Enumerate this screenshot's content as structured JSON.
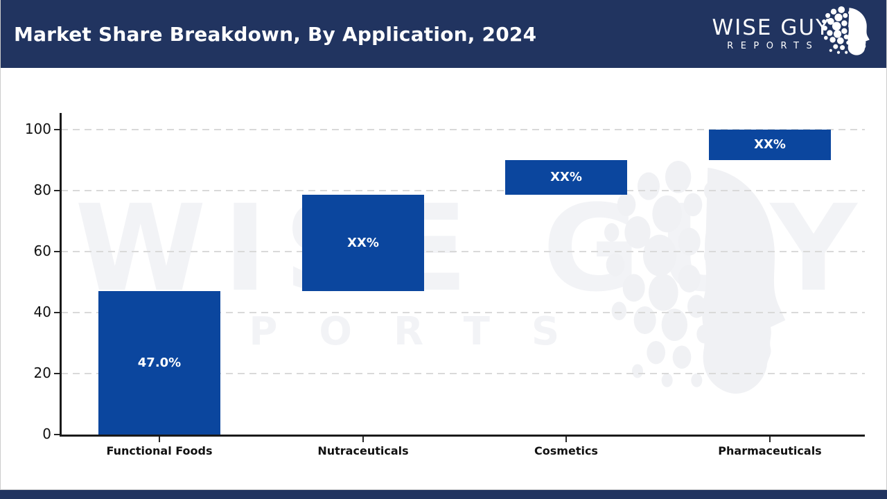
{
  "header": {
    "title": "Market Share Breakdown, By Application, 2024",
    "bg_color": "#213460",
    "brand": {
      "name": "WISE GUY",
      "sub": "REPORTS"
    }
  },
  "watermark": {
    "line1": "WISE GUY",
    "line2": "REPORTS"
  },
  "chart_data": {
    "type": "bar",
    "subtype": "waterfall",
    "title": "Market Share Breakdown, By Application, 2024",
    "categories": [
      "Functional Foods",
      "Nutraceuticals",
      "Cosmetics",
      "Pharmaceuticals"
    ],
    "segments": [
      {
        "category": "Functional Foods",
        "start": 0.0,
        "end": 47.0,
        "value": 47.0,
        "label": "47.0%"
      },
      {
        "category": "Nutraceuticals",
        "start": 47.0,
        "end": 78.5,
        "value": 31.5,
        "label": "XX%"
      },
      {
        "category": "Cosmetics",
        "start": 78.5,
        "end": 90.0,
        "value": 11.5,
        "label": "XX%"
      },
      {
        "category": "Pharmaceuticals",
        "start": 90.0,
        "end": 100.0,
        "value": 10.0,
        "label": "XX%"
      }
    ],
    "yticks": [
      0,
      20,
      40,
      60,
      80,
      100
    ],
    "ylim": [
      0,
      105
    ],
    "xlabel": "",
    "ylabel": "",
    "grid": "horizontal-dashed",
    "legend": "none",
    "bar_color": "#0b469e",
    "bar_label_color": "#ffffff",
    "grid_color": "#d9d9d9",
    "axis_color": "#1a1a1a",
    "tick_label_color": "#111111"
  }
}
